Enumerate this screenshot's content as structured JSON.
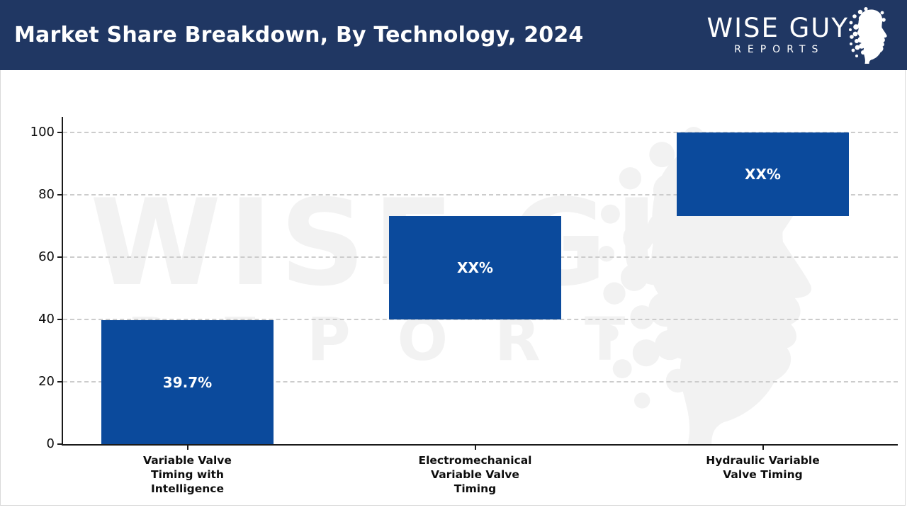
{
  "header": {
    "title": "Market Share Breakdown, By Technology, 2024"
  },
  "logo": {
    "brand_top": "WISE GUY",
    "brand_bottom": "REPORTS",
    "head_icon": "dotted-face-profile-icon"
  },
  "watermark": {
    "line1": "WISE GUY",
    "line2": "REPORTS"
  },
  "colors": {
    "header_bg": "#203763",
    "bar": "#0b4a9c",
    "axis": "#1a1a1a",
    "grid": "#cccccc",
    "watermark": "#f2f2f2",
    "value_label": "#ffffff"
  },
  "chart_data": {
    "type": "bar",
    "subtype": "floating-waterfall",
    "title": "Market Share Breakdown, By Technology, 2024",
    "xlabel": "",
    "ylabel": "",
    "ylim": [
      0,
      105
    ],
    "y_ticks": [
      0,
      20,
      40,
      60,
      80,
      100
    ],
    "grid": {
      "horizontal": true,
      "style": "dashed"
    },
    "legend": "none",
    "categories": [
      "Variable Valve\nTiming with\nIntelligence",
      "Electromechanical\nVariable Valve\nTiming",
      "Hydraulic Variable\nValve Timing"
    ],
    "segments": [
      {
        "category": "Variable Valve Timing with Intelligence",
        "start": 0,
        "end": 39.7,
        "value_label": "39.7%"
      },
      {
        "category": "Electromechanical Variable Valve Timing",
        "start": 40,
        "end": 73.2,
        "value_label": "XX%"
      },
      {
        "category": "Hydraulic Variable Valve Timing",
        "start": 73.2,
        "end": 100,
        "value_label": "XX%"
      }
    ]
  }
}
